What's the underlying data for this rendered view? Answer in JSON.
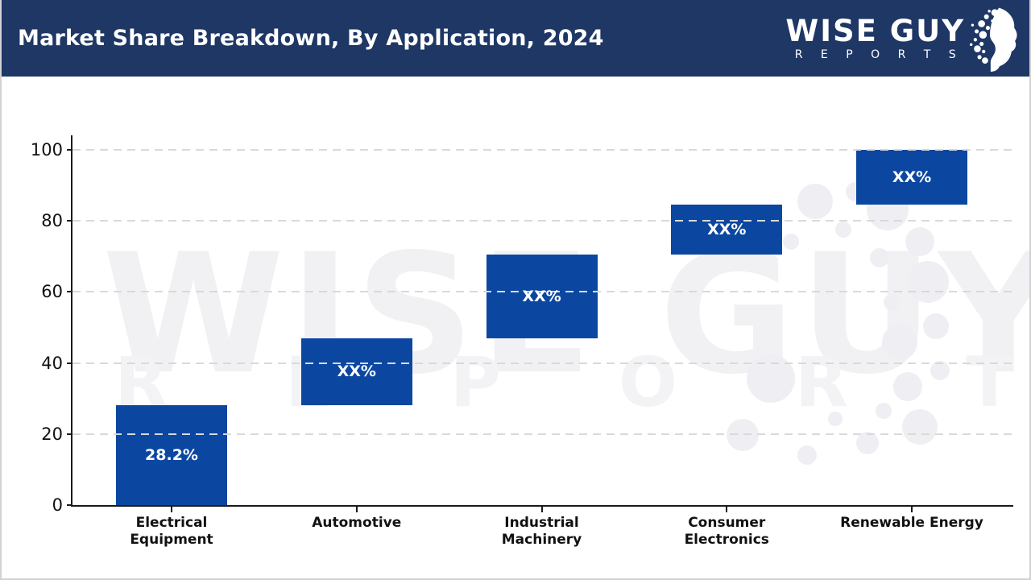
{
  "header": {
    "title": "Market Share Breakdown, By Application, 2024",
    "logo": {
      "name": "WISE GUY",
      "tagline": "R E P O R T S"
    }
  },
  "watermark": {
    "line1": "WISE GUY",
    "line2": "R E P O R T S"
  },
  "colors": {
    "header_bg": "#1e3765",
    "bar": "#0b47a1",
    "gridline": "#d9d9d9",
    "axis": "#1a1a1a",
    "bar_label": "#ffffff",
    "watermark": "#f1f1f4"
  },
  "chart_data": {
    "type": "bar",
    "subtype": "waterfall-floating-bars",
    "title": "Market Share Breakdown, By Application, 2024",
    "xlabel": "",
    "ylabel": "",
    "ylim": [
      0,
      100
    ],
    "yticks": [
      0,
      20,
      40,
      60,
      80,
      100
    ],
    "grid": "horizontal-dashed",
    "legend": null,
    "categories": [
      "Electrical Equipment",
      "Automotive",
      "Industrial Machinery",
      "Consumer Electronics",
      "Renewable Energy"
    ],
    "bars": [
      {
        "category": "Electrical Equipment",
        "category_lines": [
          "Electrical",
          "Equipment"
        ],
        "base": 0,
        "top": 28.2,
        "value_label": "28.2%"
      },
      {
        "category": "Automotive",
        "category_lines": [
          "Automotive"
        ],
        "base": 28.2,
        "top": 47,
        "value_label": "XX%"
      },
      {
        "category": "Industrial Machinery",
        "category_lines": [
          "Industrial",
          "Machinery"
        ],
        "base": 47,
        "top": 70.5,
        "value_label": "XX%"
      },
      {
        "category": "Consumer Electronics",
        "category_lines": [
          "Consumer",
          "Electronics"
        ],
        "base": 70.5,
        "top": 84.5,
        "value_label": "XX%"
      },
      {
        "category": "Renewable Energy",
        "category_lines": [
          "Renewable Energy"
        ],
        "base": 84.5,
        "top": 100,
        "value_label": "XX%"
      }
    ]
  }
}
